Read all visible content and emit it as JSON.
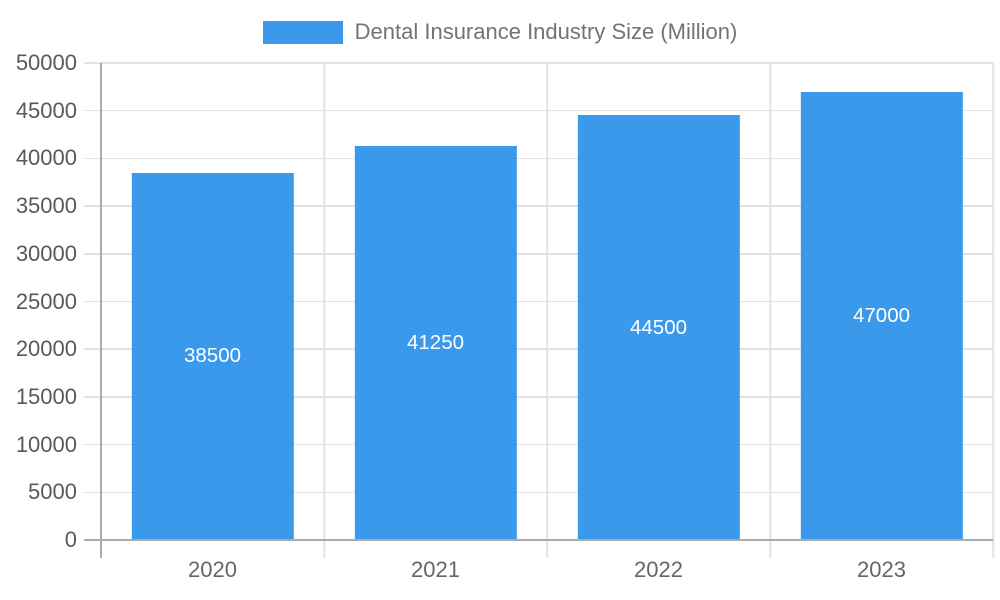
{
  "legend": {
    "label": "Dental Insurance Industry Size (Million)"
  },
  "chart_data": {
    "type": "bar",
    "title": "Dental Insurance Industry Size (Million)",
    "categories": [
      "2020",
      "2021",
      "2022",
      "2023"
    ],
    "values": [
      38500,
      41250,
      44500,
      47000
    ],
    "value_labels": [
      "38500",
      "41250",
      "44500",
      "47000"
    ],
    "xlabel": "",
    "ylabel": "",
    "ylim": [
      0,
      50000
    ],
    "ytick_step": 5000,
    "yticks": [
      0,
      5000,
      10000,
      15000,
      20000,
      25000,
      30000,
      35000,
      40000,
      45000,
      50000
    ],
    "grid": true,
    "legend_position": "top",
    "bar_color": "#3B99EC",
    "value_label_color": "#FFFFFF"
  },
  "colors": {
    "bar": "#3B99EC",
    "axis_line": "#ABABAB",
    "gridline": "#E2E2E2",
    "y_tick_label": "#595959",
    "x_tick_label": "#666666",
    "legend_text": "#737373",
    "bar_value_text": "#FFFFFF",
    "background": "#FFFFFF"
  }
}
